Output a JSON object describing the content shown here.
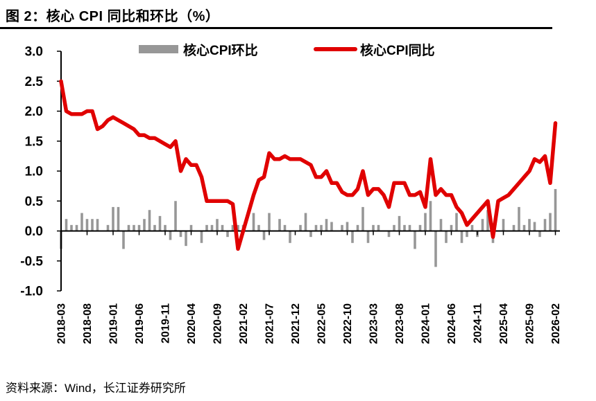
{
  "header": {
    "title": "图 2：核心 CPI 同比和环比（%）"
  },
  "legend": {
    "items": [
      {
        "label": "核心CPI环比",
        "type": "bar",
        "color": "#979797"
      },
      {
        "label": "核心CPI同比",
        "type": "line",
        "color": "#e00000"
      }
    ]
  },
  "footer": {
    "source": "资料来源：Wind，长江证券研究所"
  },
  "chart_data": {
    "type": "combo",
    "title": "核心 CPI 同比和环比（%）",
    "xlabel": "",
    "ylabel": "",
    "ylim": [
      -1.0,
      3.0
    ],
    "grid": false,
    "legend_position": "top",
    "ytick_labels": [
      "3.0",
      "2.5",
      "2.0",
      "1.5",
      "1.0",
      "0.5",
      "0.0",
      "-0.5",
      "-1.0"
    ],
    "xtick_labels": [
      "2018-03",
      "2018-08",
      "2019-01",
      "2019-06",
      "2019-11",
      "2020-04",
      "2020-09",
      "2021-02",
      "2021-07",
      "2021-12",
      "2022-05",
      "2022-10",
      "2023-03",
      "2023-08",
      "2024-01",
      "2024-06",
      "2024-11",
      "2025-04",
      "2025-09",
      "2026-02"
    ],
    "categories": [
      "2018-03",
      "2018-04",
      "2018-05",
      "2018-06",
      "2018-07",
      "2018-08",
      "2018-09",
      "2018-10",
      "2018-11",
      "2018-12",
      "2019-01",
      "2019-02",
      "2019-03",
      "2019-04",
      "2019-05",
      "2019-06",
      "2019-07",
      "2019-08",
      "2019-09",
      "2019-10",
      "2019-11",
      "2019-12",
      "2020-01",
      "2020-02",
      "2020-03",
      "2020-04",
      "2020-05",
      "2020-06",
      "2020-07",
      "2020-08",
      "2020-09",
      "2020-10",
      "2020-11",
      "2020-12",
      "2021-01",
      "2021-02",
      "2021-03",
      "2021-04",
      "2021-05",
      "2021-06",
      "2021-07",
      "2021-08",
      "2021-09",
      "2021-10",
      "2021-11",
      "2021-12",
      "2022-01",
      "2022-02",
      "2022-03",
      "2022-04",
      "2022-05",
      "2022-06",
      "2022-07",
      "2022-08",
      "2022-09",
      "2022-10",
      "2022-11",
      "2022-12",
      "2023-01",
      "2023-02",
      "2023-03",
      "2023-04",
      "2023-05",
      "2023-06",
      "2023-07",
      "2023-08",
      "2023-09",
      "2023-10",
      "2023-11",
      "2023-12",
      "2024-01",
      "2024-02",
      "2024-03",
      "2024-04",
      "2024-05",
      "2024-06",
      "2024-07",
      "2024-08",
      "2024-09",
      "2024-10",
      "2024-11",
      "2024-12",
      "2025-01",
      "2025-02",
      "2025-03",
      "2025-04",
      "2025-05",
      "2025-06",
      "2025-07",
      "2025-08",
      "2025-09",
      "2025-10",
      "2025-11",
      "2025-12",
      "2026-01",
      "2026-02"
    ],
    "series": [
      {
        "name": "核心CPI环比",
        "type": "bar",
        "color": "#979797",
        "values": [
          -0.3,
          0.2,
          0.1,
          0.1,
          0.3,
          0.2,
          0.2,
          0.2,
          0.0,
          0.1,
          0.4,
          0.4,
          -0.3,
          0.1,
          0.1,
          0.1,
          0.2,
          0.35,
          0.1,
          0.25,
          0.1,
          -0.15,
          0.5,
          -0.1,
          -0.25,
          0.1,
          0.0,
          -0.2,
          0.1,
          0.1,
          0.2,
          0.1,
          -0.1,
          0.1,
          0.1,
          0.1,
          0.0,
          0.3,
          0.1,
          -0.15,
          0.3,
          0.0,
          0.2,
          0.1,
          -0.2,
          0.0,
          0.1,
          0.3,
          -0.1,
          0.1,
          0.1,
          0.2,
          0.15,
          0.0,
          0.1,
          0.15,
          -0.2,
          0.1,
          0.4,
          -0.2,
          0.1,
          0.1,
          0.0,
          -0.1,
          0.1,
          0.25,
          0.1,
          0.1,
          -0.3,
          0.1,
          0.3,
          0.5,
          -0.6,
          0.2,
          -0.2,
          0.1,
          0.3,
          -0.2,
          -0.1,
          0.1,
          -0.1,
          0.2,
          0.35,
          -0.2,
          0.0,
          0.2,
          0.0,
          0.1,
          0.4,
          0.1,
          0.2,
          0.15,
          -0.1,
          0.2,
          0.3,
          0.7
        ]
      },
      {
        "name": "核心CPI同比",
        "type": "line",
        "color": "#e00000",
        "values": [
          2.5,
          2.0,
          1.95,
          1.95,
          1.95,
          2.0,
          2.0,
          1.7,
          1.75,
          1.85,
          1.9,
          1.85,
          1.8,
          1.75,
          1.7,
          1.6,
          1.6,
          1.55,
          1.55,
          1.5,
          1.45,
          1.4,
          1.5,
          1.0,
          1.2,
          1.1,
          1.1,
          0.9,
          0.5,
          0.5,
          0.5,
          0.5,
          0.5,
          0.45,
          -0.3,
          0.0,
          0.3,
          0.6,
          0.85,
          0.9,
          1.3,
          1.2,
          1.2,
          1.25,
          1.2,
          1.2,
          1.2,
          1.15,
          1.1,
          0.9,
          0.9,
          1.0,
          0.8,
          0.8,
          0.65,
          0.6,
          0.6,
          0.7,
          1.0,
          0.6,
          0.7,
          0.7,
          0.6,
          0.4,
          0.8,
          0.8,
          0.8,
          0.6,
          0.6,
          0.65,
          0.4,
          1.2,
          0.6,
          0.7,
          0.6,
          0.6,
          0.4,
          0.3,
          0.1,
          0.2,
          0.3,
          0.4,
          0.5,
          -0.1,
          0.5,
          0.55,
          0.6,
          0.7,
          0.8,
          0.9,
          1.0,
          1.2,
          1.15,
          1.25,
          0.8,
          1.8
        ]
      }
    ]
  }
}
